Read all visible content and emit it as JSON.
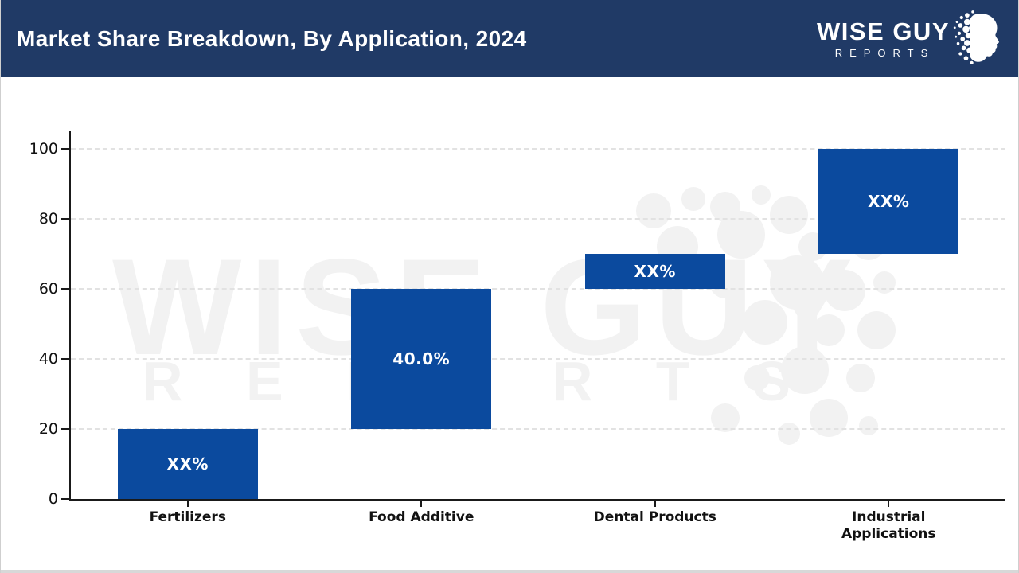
{
  "header": {
    "title": "Market Share Breakdown, By Application, 2024",
    "logo": {
      "line1": "WISE GUY",
      "line2": "REPORTS"
    }
  },
  "watermark": {
    "line1": "WISE GUY",
    "line2": "R E P O R T S"
  },
  "colors": {
    "header_bg": "#203a66",
    "bar": "#0b4a9e",
    "grid": "#e2e2e2",
    "axis": "#1a1a1a",
    "watermark": "#f2f2f2",
    "footer_bar": "#d8d8d8"
  },
  "chart_data": {
    "type": "bar",
    "subtype": "waterfall",
    "title": "Market Share Breakdown, By Application, 2024",
    "categories": [
      "Fertilizers",
      "Food Additive",
      "Dental Products",
      "Industrial Applications"
    ],
    "values": [
      20,
      40,
      10,
      30
    ],
    "segment_ranges": [
      [
        0,
        20
      ],
      [
        20,
        60
      ],
      [
        60,
        70
      ],
      [
        70,
        100
      ]
    ],
    "bar_labels": [
      "XX%",
      "40.0%",
      "XX%",
      "XX%"
    ],
    "xlabel": "",
    "ylabel": "",
    "yticks": [
      0,
      20,
      40,
      60,
      80,
      100
    ],
    "ylim": [
      0,
      105
    ],
    "grid": true,
    "legend_position": null,
    "bar_color": "#0b4a9e"
  }
}
